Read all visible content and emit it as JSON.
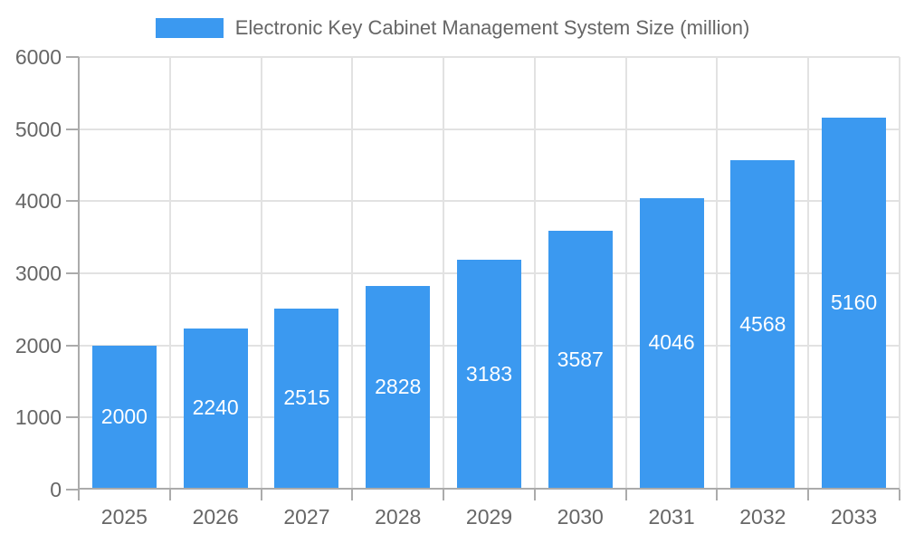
{
  "colors": {
    "bar": "#3B99F0",
    "bar_label": "#FFFFFF",
    "grid": "#E2E2E2",
    "axis": "#ABABAB",
    "text": "#666666",
    "background": "#FFFFFF"
  },
  "legend": {
    "label": "Electronic Key Cabinet Management System Size (million)",
    "position": "top"
  },
  "chart_data": {
    "type": "bar",
    "title": "Electronic Key Cabinet Management System Size (million)",
    "categories": [
      "2025",
      "2026",
      "2027",
      "2028",
      "2029",
      "2030",
      "2031",
      "2032",
      "2033"
    ],
    "values": [
      2000,
      2240,
      2515,
      2828,
      3183,
      3587,
      4046,
      4568,
      5160
    ],
    "xlabel": "",
    "ylabel": "",
    "ylim": [
      0,
      6000
    ],
    "yticks": [
      0,
      1000,
      2000,
      3000,
      4000,
      5000,
      6000
    ],
    "grid": true,
    "legend_position": "top",
    "bar_value_labels": "inside-center"
  }
}
